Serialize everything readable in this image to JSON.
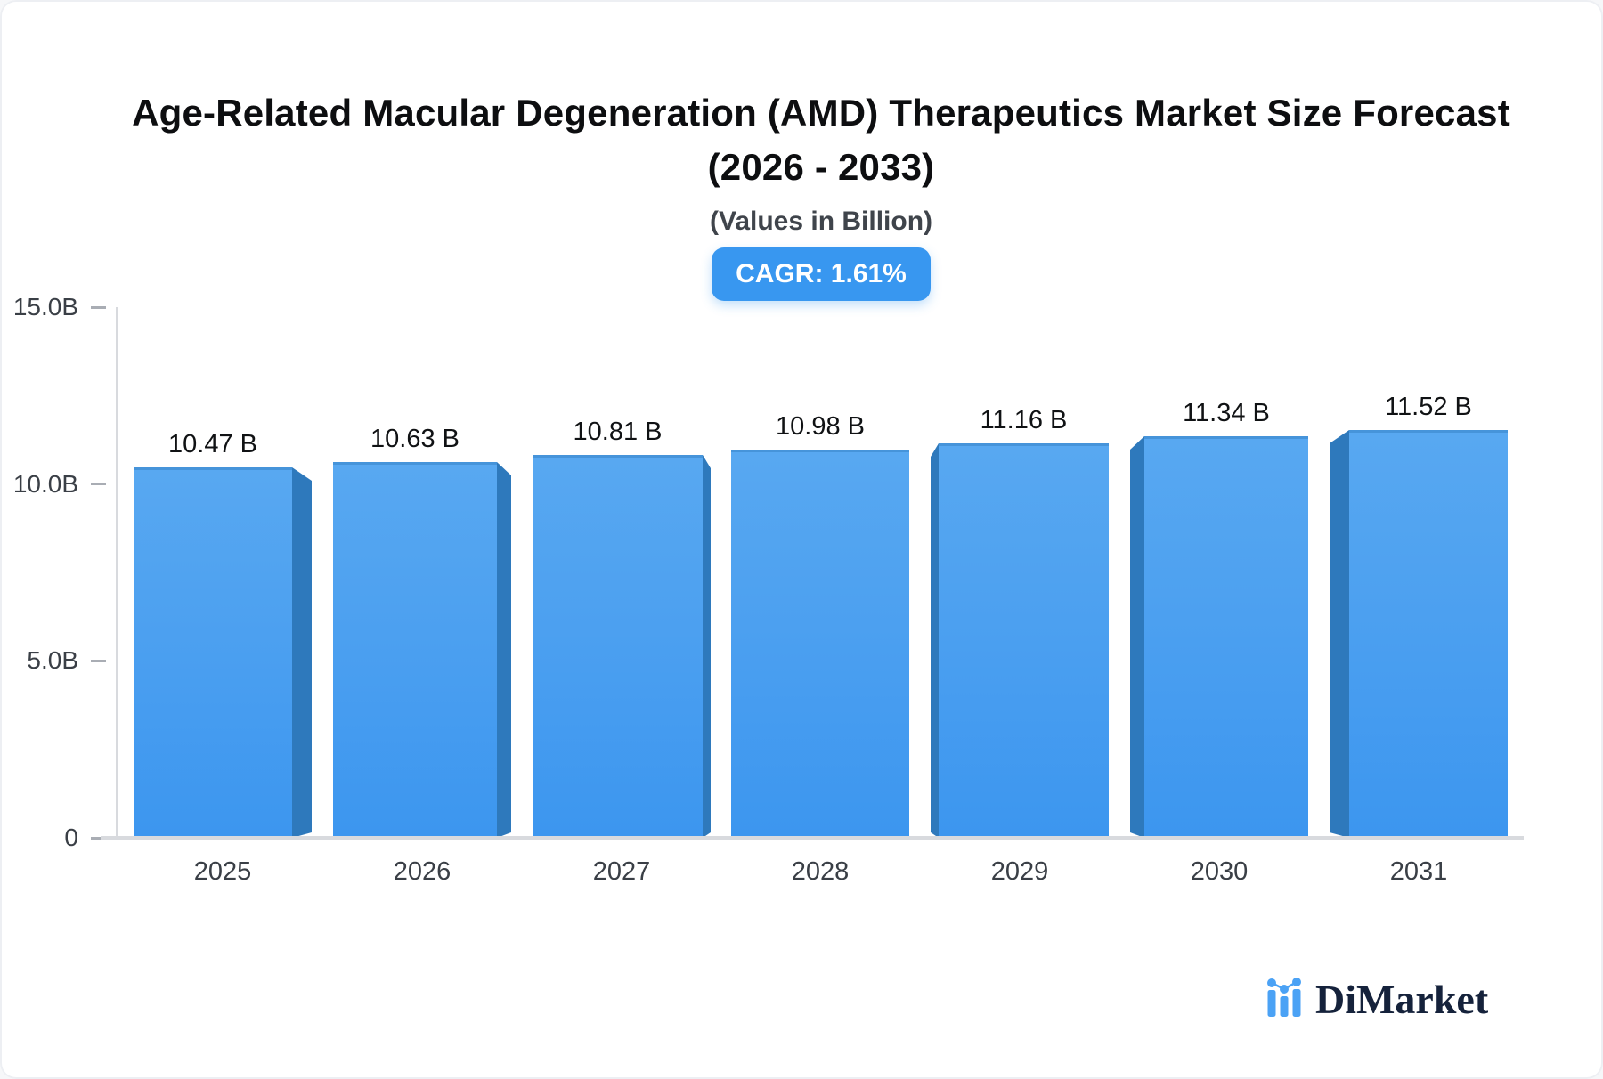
{
  "title": {
    "line1": "Age-Related Macular Degeneration (AMD) Therapeutics Market Size Forecast",
    "line2": "(2026 - 2033)"
  },
  "subtitle": "(Values in Billion)",
  "badge": {
    "label": "CAGR: 1.61%",
    "bg_color": "#3897f0",
    "text_color": "#ffffff"
  },
  "chart_data": {
    "type": "bar",
    "title": "Age-Related Macular Degeneration (AMD) Therapeutics Market Size Forecast (2026 - 2033)",
    "subtitle": "(Values in Billion)",
    "categories": [
      "2025",
      "2026",
      "2027",
      "2028",
      "2029",
      "2030",
      "2031"
    ],
    "values": [
      10.47,
      10.63,
      10.81,
      10.98,
      11.16,
      11.34,
      11.52
    ],
    "value_labels": [
      "10.47 B",
      "10.63 B",
      "10.81 B",
      "10.98 B",
      "11.16 B",
      "11.34 B",
      "11.52 B"
    ],
    "xlabel": "",
    "ylabel": "",
    "ylim": [
      0,
      15
    ],
    "yticks": [
      {
        "label": "15.0B",
        "value": 15
      },
      {
        "label": "10.0B",
        "value": 10
      },
      {
        "label": "5.0B",
        "value": 5
      },
      {
        "label": "0",
        "value": 0
      }
    ],
    "grid": false,
    "legend": false,
    "bar_style": "3d-perspective",
    "colors": {
      "bar_face_top": "#58a8f1",
      "bar_face_bottom": "#3c96ef",
      "bar_top_edge": "#4694da",
      "bar_side": "#2e79bc",
      "axis_line": "#d8dade",
      "tick_text": "#3a3f46",
      "value_text": "#101214"
    }
  },
  "logo": {
    "text": "DiMarket",
    "icon": "bar-line-chart-icon",
    "accent_color": "#4ba2f5"
  }
}
